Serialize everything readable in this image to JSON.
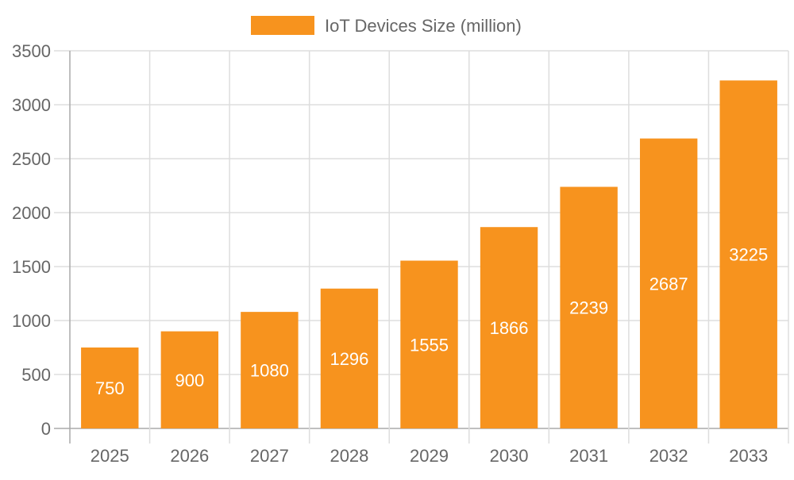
{
  "chart_data": {
    "type": "bar",
    "categories": [
      "2025",
      "2026",
      "2027",
      "2028",
      "2029",
      "2030",
      "2031",
      "2032",
      "2033"
    ],
    "series": [
      {
        "name": "IoT Devices Size (million)",
        "values": [
          750,
          900,
          1080,
          1296,
          1555,
          1866,
          2239,
          2687,
          3225
        ],
        "color": "#f7931e"
      }
    ],
    "yticks": [
      "0",
      "500",
      "1000",
      "1500",
      "2000",
      "2500",
      "3000",
      "3500"
    ],
    "ylim": [
      0,
      3500
    ],
    "grid": true,
    "legend": "top-center",
    "data_labels": true
  }
}
